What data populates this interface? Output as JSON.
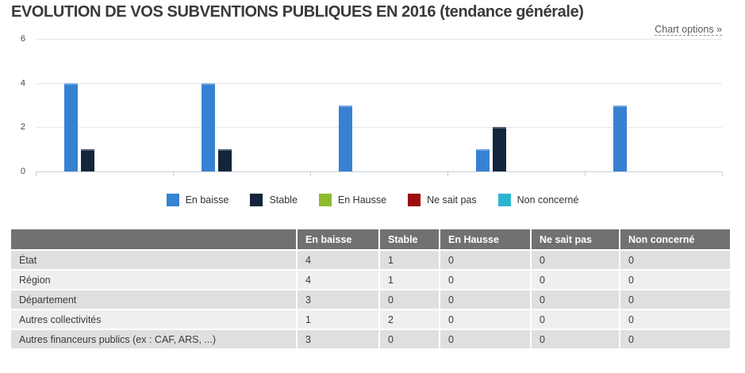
{
  "page": {
    "title": "EVOLUTION DE VOS SUBVENTIONS PUBLIQUES EN 2016 (tendance générale)",
    "chart_options_label": "Chart options »"
  },
  "chart_data": {
    "type": "bar",
    "title": "EVOLUTION DE VOS SUBVENTIONS PUBLIQUES EN 2016 (tendance générale)",
    "categories": [
      "État",
      "Région",
      "Département",
      "Autres collectivités",
      "Autres financeurs publics (ex : CAF, ARS, ...)"
    ],
    "series": [
      {
        "name": "En baisse",
        "color": "#3781d3",
        "values": [
          4,
          4,
          3,
          1,
          3
        ]
      },
      {
        "name": "Stable",
        "color": "#13253c",
        "values": [
          1,
          1,
          0,
          2,
          0
        ]
      },
      {
        "name": "En Hausse",
        "color": "#8bbb2e",
        "values": [
          0,
          0,
          0,
          0,
          0
        ]
      },
      {
        "name": "Ne sait pas",
        "color": "#9c0d10",
        "values": [
          0,
          0,
          0,
          0,
          0
        ]
      },
      {
        "name": "Non concerné",
        "color": "#2cb4d0",
        "values": [
          0,
          0,
          0,
          0,
          0
        ]
      }
    ],
    "xlabel": "",
    "ylabel": "",
    "ylim": [
      0,
      6
    ],
    "yticks": [
      0,
      2,
      4,
      6
    ],
    "grid": true,
    "legend_position": "bottom",
    "category_axis_labels_shown": false
  },
  "table": {
    "columns": [
      "",
      "En baisse",
      "Stable",
      "En Hausse",
      "Ne sait pas",
      "Non concerné"
    ],
    "rows": [
      {
        "label": "État",
        "values": [
          4,
          1,
          0,
          0,
          0
        ]
      },
      {
        "label": "Région",
        "values": [
          4,
          1,
          0,
          0,
          0
        ]
      },
      {
        "label": "Département",
        "values": [
          3,
          0,
          0,
          0,
          0
        ]
      },
      {
        "label": "Autres collectivités",
        "values": [
          1,
          2,
          0,
          0,
          0
        ]
      },
      {
        "label": "Autres financeurs publics (ex : CAF, ARS, ...)",
        "values": [
          3,
          0,
          0,
          0,
          0
        ]
      }
    ]
  },
  "colors": {
    "header_background": "#717171",
    "row_odd": "#dfdfdf",
    "row_even": "#efefef",
    "gridline": "#e6e6e6",
    "axis": "#c7cfd5",
    "title_text": "#3a3a3a",
    "link_text": "#58595b"
  }
}
